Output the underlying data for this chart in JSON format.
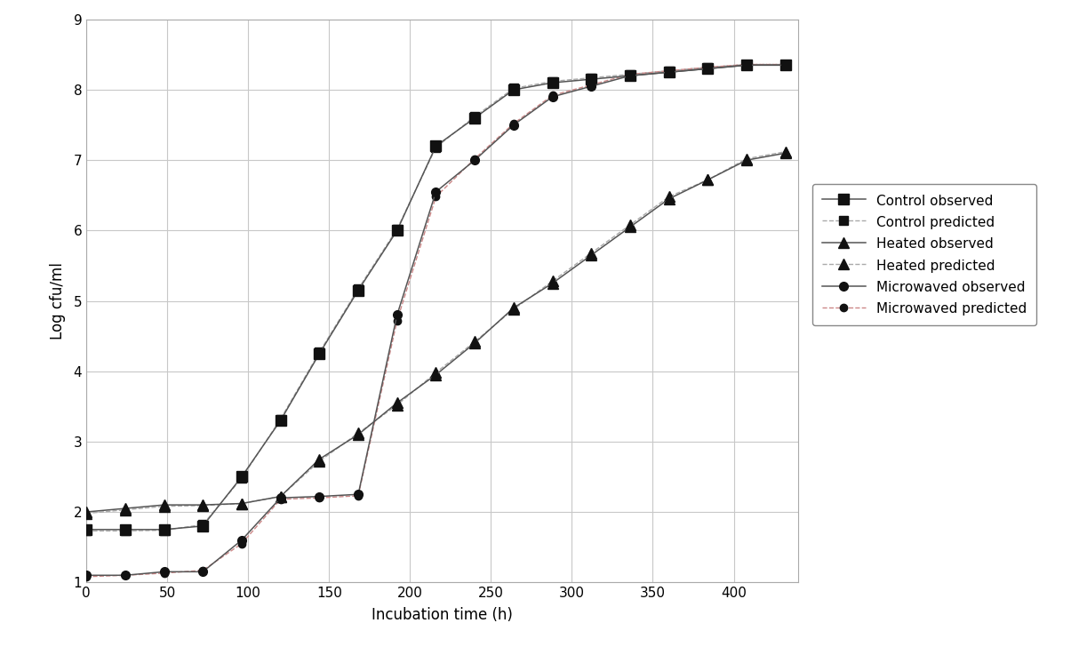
{
  "control_obs_x": [
    0,
    24,
    48,
    72,
    96,
    120,
    144,
    168,
    192,
    216,
    240,
    264,
    288,
    312,
    336,
    360,
    384,
    408,
    432
  ],
  "control_obs_y": [
    1.75,
    1.75,
    1.75,
    1.8,
    2.5,
    3.3,
    4.25,
    5.15,
    6.0,
    7.2,
    7.6,
    8.0,
    8.1,
    8.15,
    8.2,
    8.25,
    8.3,
    8.35,
    8.35
  ],
  "control_pred_x": [
    0,
    24,
    48,
    72,
    96,
    120,
    144,
    168,
    192,
    216,
    240,
    264,
    288,
    312,
    336,
    360,
    384,
    408,
    432
  ],
  "control_pred_y": [
    1.73,
    1.73,
    1.74,
    1.82,
    2.48,
    3.32,
    4.27,
    5.17,
    6.02,
    7.18,
    7.62,
    8.02,
    8.12,
    8.17,
    8.22,
    8.27,
    8.32,
    8.36,
    8.36
  ],
  "heated_obs_x": [
    0,
    24,
    48,
    72,
    96,
    120,
    144,
    168,
    192,
    216,
    240,
    264,
    288,
    312,
    336,
    360,
    384,
    408,
    432
  ],
  "heated_obs_y": [
    2.0,
    2.05,
    2.1,
    2.1,
    2.12,
    2.22,
    2.75,
    3.1,
    3.55,
    3.95,
    4.4,
    4.9,
    5.25,
    5.65,
    6.05,
    6.45,
    6.72,
    7.0,
    7.1
  ],
  "heated_pred_x": [
    0,
    24,
    48,
    72,
    96,
    120,
    144,
    168,
    192,
    216,
    240,
    264,
    288,
    312,
    336,
    360,
    384,
    408,
    432
  ],
  "heated_pred_y": [
    1.98,
    2.03,
    2.08,
    2.09,
    2.12,
    2.22,
    2.72,
    3.12,
    3.52,
    3.98,
    4.42,
    4.88,
    5.28,
    5.68,
    6.08,
    6.48,
    6.72,
    7.02,
    7.12
  ],
  "micro_obs_x": [
    0,
    24,
    48,
    72,
    96,
    120,
    144,
    168,
    192,
    216,
    240,
    264,
    288,
    312,
    336,
    360,
    384,
    408,
    432
  ],
  "micro_obs_y": [
    1.1,
    1.1,
    1.15,
    1.15,
    1.6,
    2.2,
    2.22,
    2.25,
    4.8,
    6.55,
    7.0,
    7.5,
    7.9,
    8.05,
    8.2,
    8.25,
    8.3,
    8.35,
    8.35
  ],
  "micro_pred_x": [
    0,
    24,
    48,
    72,
    96,
    120,
    144,
    168,
    192,
    216,
    240,
    264,
    288,
    312,
    336,
    360,
    384,
    408,
    432
  ],
  "micro_pred_y": [
    1.08,
    1.1,
    1.13,
    1.17,
    1.55,
    2.18,
    2.2,
    2.23,
    4.72,
    6.48,
    7.02,
    7.52,
    7.92,
    8.07,
    8.22,
    8.27,
    8.32,
    8.36,
    8.36
  ],
  "obs_line_color": "#555555",
  "pred_line_color_ctrl_heat": "#aaaaaa",
  "pred_line_color_micro": "#cc8888",
  "marker_color": "#111111",
  "xlabel": "Incubation time (h)",
  "ylabel": "Log cfu/ml",
  "xlim": [
    0,
    440
  ],
  "ylim": [
    1,
    9
  ],
  "xticks": [
    0,
    50,
    100,
    150,
    200,
    250,
    300,
    350,
    400
  ],
  "yticks": [
    1,
    2,
    3,
    4,
    5,
    6,
    7,
    8,
    9
  ],
  "grid_color": "#c8c8c8",
  "legend_labels": [
    "Control observed",
    "Control predicted",
    "Heated observed",
    "Heated predicted",
    "Microwaved observed",
    "Microwaved predicted"
  ]
}
